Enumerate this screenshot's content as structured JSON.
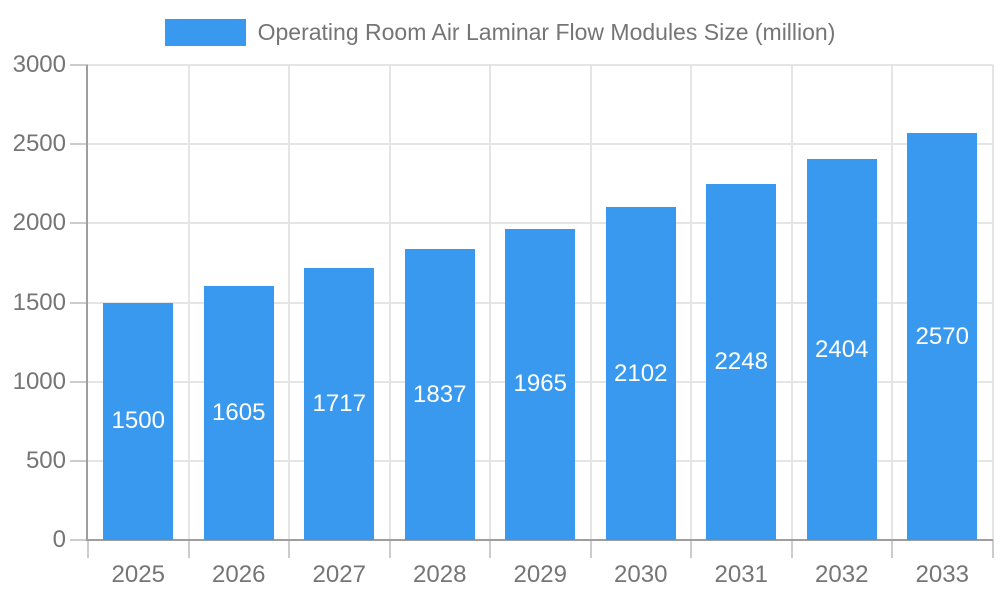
{
  "chart_data": {
    "type": "bar",
    "title": "Operating Room Air Laminar Flow Modules Size (million)",
    "categories": [
      "2025",
      "2026",
      "2027",
      "2028",
      "2029",
      "2030",
      "2031",
      "2032",
      "2033"
    ],
    "series": [
      {
        "name": "Operating Room Air Laminar Flow Modules Size (million)",
        "values": [
          1500,
          1605,
          1717,
          1837,
          1965,
          2102,
          2248,
          2404,
          2570
        ]
      }
    ],
    "xlabel": "",
    "ylabel": "",
    "ylim": [
      0,
      3000
    ],
    "yticks": [
      0,
      500,
      1000,
      1500,
      2000,
      2500,
      3000
    ],
    "grid": true,
    "legend_position": "top-center",
    "value_labels": "inside-center",
    "colors": {
      "bar": "#3999EE",
      "axis_text": "#757575",
      "legend_text": "#757575",
      "value_label_text": "#FFFFFF",
      "gridline": "#E5E5E5",
      "tick": "#CCCCCC",
      "axis_line": "#9E9E9E",
      "background": "#FFFFFF"
    }
  }
}
